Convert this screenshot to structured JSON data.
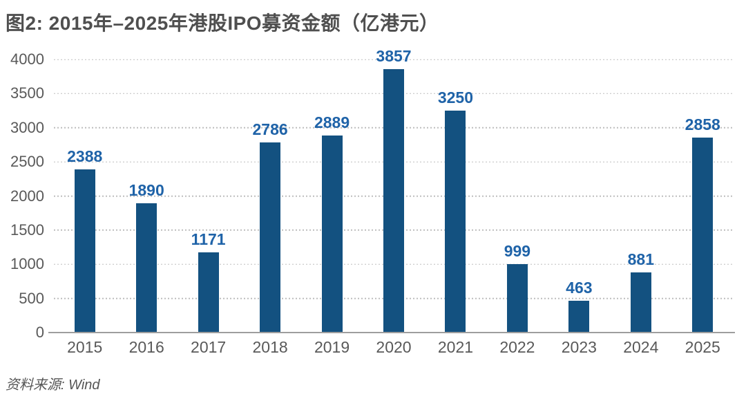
{
  "source_note": "资料来源: Wind",
  "colors": {
    "bar": "#135180",
    "data_label": "#1f63a8",
    "title_text": "#4f4f4f",
    "axis_text": "#595959",
    "gridline": "#bdbdbd",
    "axis_line": "#9e9e9e",
    "background": "#ffffff"
  },
  "chart_data": {
    "type": "bar",
    "title": "图2: 2015年–2025年港股IPO募资金额（亿港元）",
    "categories": [
      "2015",
      "2016",
      "2017",
      "2018",
      "2019",
      "2020",
      "2021",
      "2022",
      "2023",
      "2024",
      "2025"
    ],
    "values": [
      2388,
      1890,
      1171,
      2786,
      2889,
      3857,
      3250,
      999,
      463,
      881,
      2858
    ],
    "xlabel": "",
    "ylabel": "",
    "ylim": [
      0,
      4000
    ],
    "ytick_interval": 500,
    "yticks": [
      0,
      500,
      1000,
      1500,
      2000,
      2500,
      3000,
      3500,
      4000
    ],
    "grid": "horizontal-dotted",
    "legend": "none",
    "data_labels": true,
    "bar_color": "#135180",
    "source": "资料来源: Wind"
  }
}
